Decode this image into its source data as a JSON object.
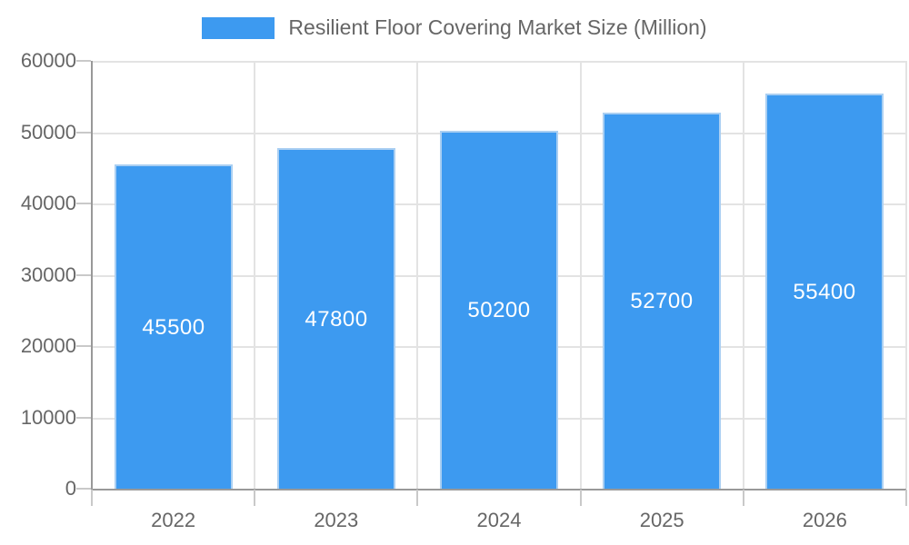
{
  "chart_data": {
    "type": "bar",
    "title": "Resilient Floor Covering Market Size (Million)",
    "categories": [
      "2022",
      "2023",
      "2024",
      "2025",
      "2026"
    ],
    "series": [
      {
        "name": "Resilient Floor Covering Market Size (Million)",
        "values": [
          45500,
          47800,
          50200,
          52700,
          55400
        ]
      }
    ],
    "value_labels": [
      "45500",
      "47800",
      "50200",
      "52700",
      "55400"
    ],
    "xlabel": "",
    "ylabel": "",
    "ylim": [
      0,
      60000
    ],
    "ytick_interval": 10000,
    "ytick_labels": [
      "0",
      "10000",
      "20000",
      "30000",
      "40000",
      "50000",
      "60000"
    ],
    "grid": true,
    "legend_position": "top-center",
    "colors": {
      "bar_fill": "#3d9af0",
      "bar_border": "#aacff2",
      "grid_line": "#e3e3e3",
      "axis_line": "#999999",
      "tick_mark": "#c9c9c9",
      "axis_text": "#666666",
      "value_label_text": "#ffffff",
      "background": "#ffffff"
    }
  }
}
